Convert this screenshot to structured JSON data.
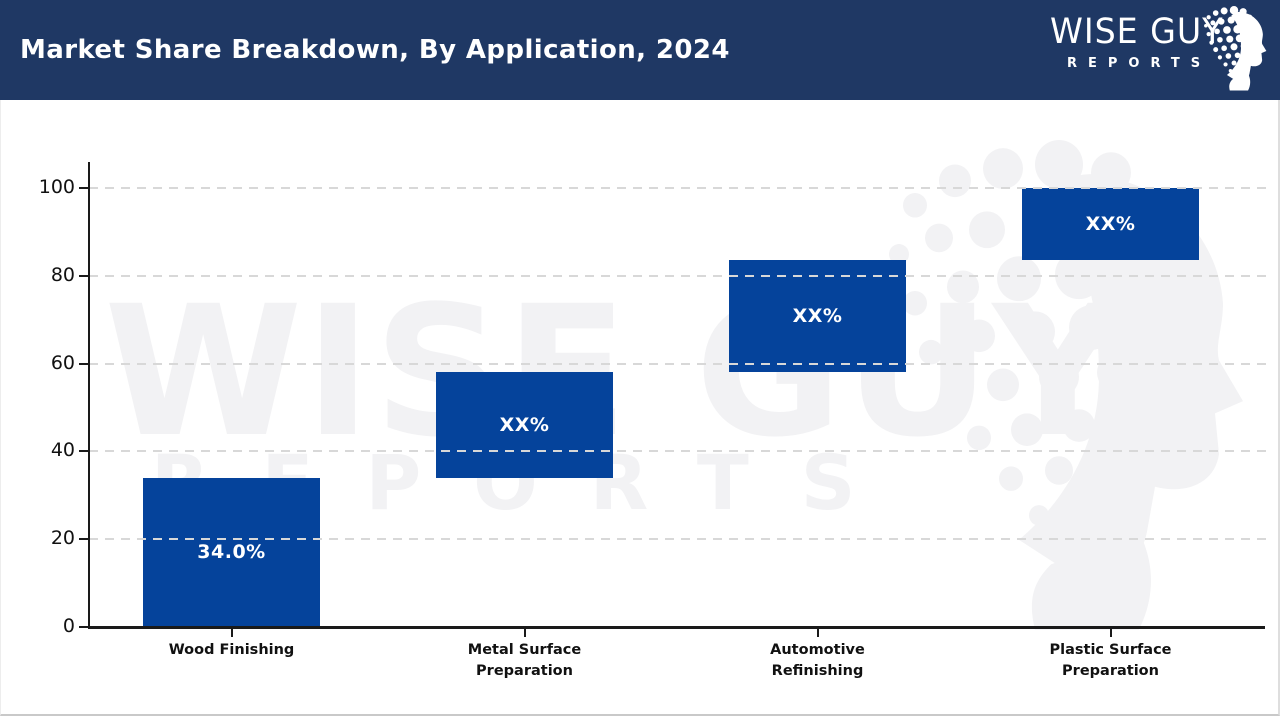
{
  "header": {
    "title": "Market Share Breakdown, By Application, 2024",
    "logo": {
      "line1": "WISE GUY",
      "line2": "REPORTS"
    }
  },
  "watermark": {
    "line1": "WISE GUY",
    "line2": "REPORTS"
  },
  "chart_data": {
    "type": "bar",
    "subtype": "waterfall-floating-bars",
    "title": "Market Share Breakdown, By Application, 2024",
    "xlabel": "",
    "ylabel": "",
    "ylim": [
      0,
      105
    ],
    "yticks": [
      0,
      20,
      40,
      60,
      80,
      100
    ],
    "grid": true,
    "grid_style": "dashed",
    "bar_color": "#05439b",
    "label_color": "#ffffff",
    "categories": [
      {
        "lines": [
          "Wood Finishing"
        ]
      },
      {
        "lines": [
          "Metal Surface",
          "Preparation"
        ]
      },
      {
        "lines": [
          "Automotive",
          "Refinishing"
        ]
      },
      {
        "lines": [
          "Plastic Surface",
          "Preparation"
        ]
      }
    ],
    "segments": [
      {
        "category": "Wood Finishing",
        "start": 0,
        "end": 34,
        "label": "34.0%"
      },
      {
        "category": "Metal Surface Preparation",
        "start": 34,
        "end": 58,
        "label": "XX%"
      },
      {
        "category": "Automotive Refinishing",
        "start": 58,
        "end": 83.5,
        "label": "XX%"
      },
      {
        "category": "Plastic Surface Preparation",
        "start": 83.5,
        "end": 100,
        "label": "XX%"
      }
    ]
  }
}
